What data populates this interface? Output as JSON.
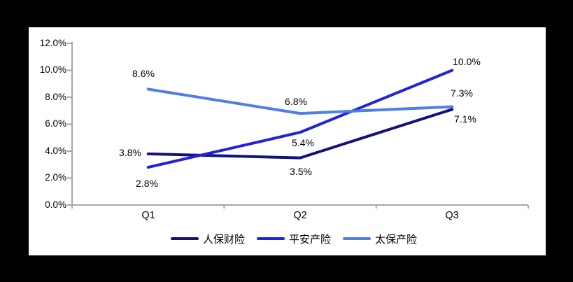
{
  "page": {
    "background_color": "#000000",
    "panel_color": "#ffffff"
  },
  "chart_data": {
    "type": "line",
    "title": "",
    "categories": [
      "Q1",
      "Q2",
      "Q3"
    ],
    "series": [
      {
        "name": "人保财险",
        "color": "#12127A",
        "values": [
          3.8,
          3.5,
          7.1
        ],
        "point_labels": [
          "3.8%",
          "3.5%",
          "7.1%"
        ]
      },
      {
        "name": "平安产险",
        "color": "#2222DC",
        "values": [
          2.8,
          5.4,
          10.0
        ],
        "point_labels": [
          "2.8%",
          "5.4%",
          "10.0%"
        ]
      },
      {
        "name": "太保产险",
        "color": "#4F7EE8",
        "values": [
          8.6,
          6.8,
          7.3
        ],
        "point_labels": [
          "8.6%",
          "6.8%",
          "7.3%"
        ]
      }
    ],
    "y_axis": {
      "min": 0,
      "max": 12,
      "tick_labels": [
        "12.0%",
        "10.0%",
        "8.0%",
        "6.0%",
        "4.0%",
        "2.0%",
        "0.0%"
      ]
    },
    "x_axis": {
      "tick_labels": [
        "Q1",
        "Q2",
        "Q3"
      ]
    },
    "legend_position": "bottom",
    "grid": false,
    "axis_color": "#A6A6A6",
    "label_color": "#000000"
  }
}
